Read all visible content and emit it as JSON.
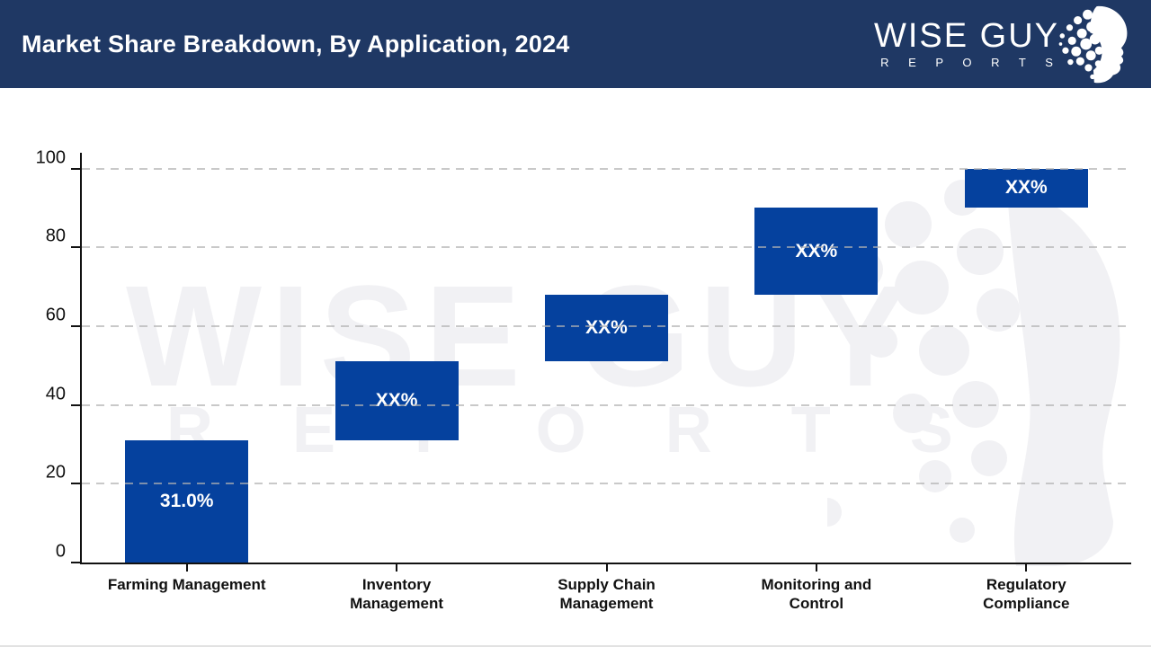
{
  "header": {
    "title": "Market Share Breakdown, By Application, 2024",
    "logo": {
      "line1": "WISE GUY",
      "line2": "R E P O R T S"
    }
  },
  "watermark": {
    "line1": "WISE GUY",
    "line2": "R E P O R T S"
  },
  "colors": {
    "header_background": "#1f3864",
    "bar_blue": "#05419e",
    "grid_gray": "#c9c9c9",
    "axis_black": "#111111",
    "watermark_gray": "#f1f1f4",
    "background": "#ffffff"
  },
  "chart_data": {
    "type": "waterfall",
    "title": "Market Share Breakdown, By Application, 2024",
    "xlabel": "",
    "ylabel": "",
    "ylim": [
      0,
      104
    ],
    "yticks": [
      0,
      20,
      40,
      60,
      80,
      100
    ],
    "grid": "horizontal dashed, drawn over bars",
    "legend": "none",
    "bar_color": "#05419e",
    "categories": [
      "Farming Management",
      "Inventory Management",
      "Supply Chain Management",
      "Monitoring and Control",
      "Regulatory Compliance"
    ],
    "category_label_lines": [
      [
        "Farming Management"
      ],
      [
        "Inventory",
        "Management"
      ],
      [
        "Supply Chain",
        "Management"
      ],
      [
        "Monitoring and",
        "Control"
      ],
      [
        "Regulatory",
        "Compliance"
      ]
    ],
    "segments": [
      {
        "category": "Farming Management",
        "start": 0,
        "end": 31,
        "label": "31.0%"
      },
      {
        "category": "Inventory Management",
        "start": 31,
        "end": 51,
        "label": "XX%"
      },
      {
        "category": "Supply Chain Management",
        "start": 51,
        "end": 68,
        "label": "XX%"
      },
      {
        "category": "Monitoring and Control",
        "start": 68,
        "end": 90,
        "label": "XX%"
      },
      {
        "category": "Regulatory Compliance",
        "start": 90,
        "end": 100,
        "label": "XX%"
      }
    ]
  }
}
